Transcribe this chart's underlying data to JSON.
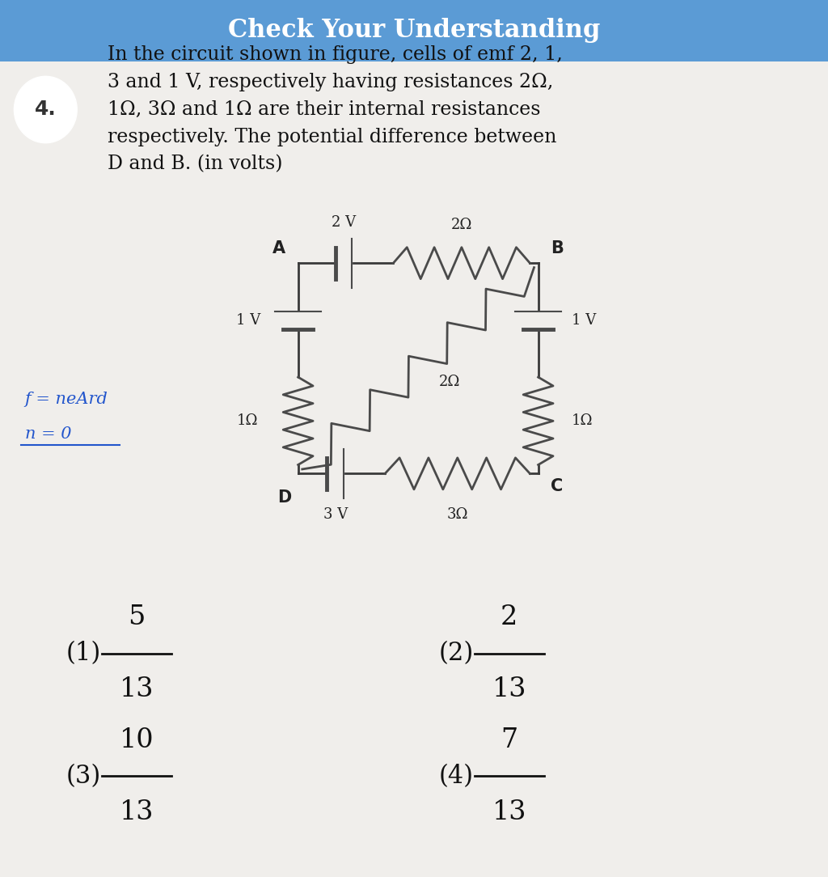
{
  "bg_color": "#f0eeeb",
  "header_color": "#5b9bd5",
  "header_text": "Check Your Understanding",
  "question_number": "4.",
  "question_text": "In the circuit shown in figure, cells of emf 2, 1,\n3 and 1 V, respectively having resistances 2Ω,\n1Ω, 3Ω and 1Ω are their internal resistances\nrespectively. The potential difference between\nD and B. (in volts)",
  "side_annotation": "f = neArd",
  "side_annotation2": "n = 0",
  "options": [
    {
      "num": "(1)",
      "numer": "5",
      "denom": "13"
    },
    {
      "num": "(2)",
      "numer": "2",
      "denom": "13"
    },
    {
      "num": "(3)",
      "numer": "10",
      "denom": "13"
    },
    {
      "num": "(4)",
      "numer": "7",
      "denom": "13"
    }
  ],
  "circuit": {
    "wire_color": "#3a3a3a",
    "component_color": "#4a4a4a"
  }
}
